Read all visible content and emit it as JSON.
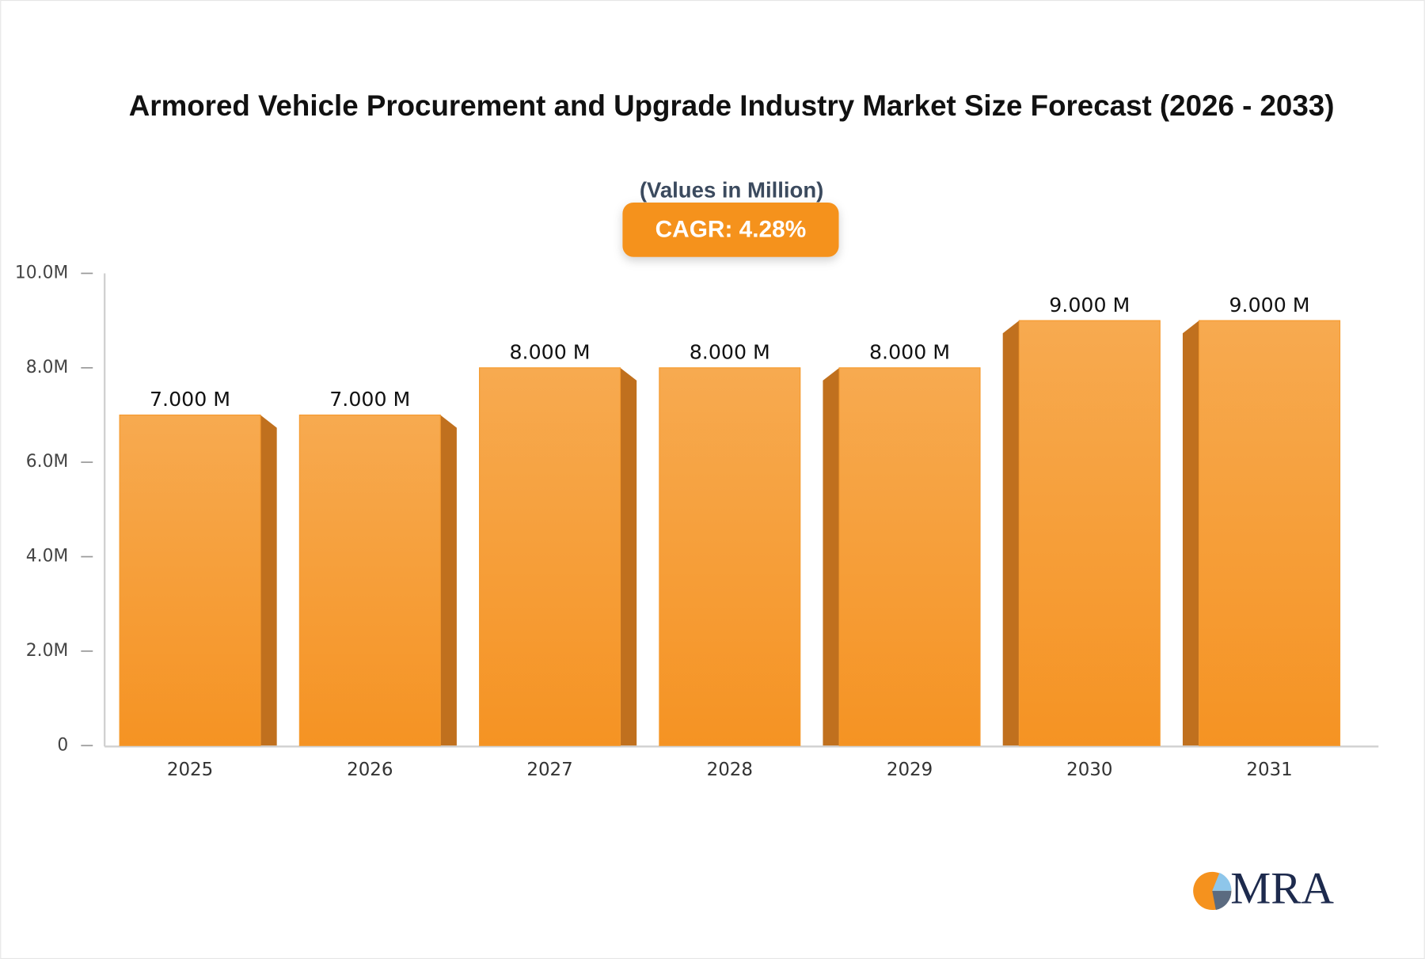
{
  "chart_data": {
    "type": "bar",
    "title": "Armored Vehicle Procurement and Upgrade Industry Market Size Forecast (2026 - 2033)",
    "subtitle": "(Values in Million)",
    "badge": "CAGR: 4.28%",
    "categories": [
      "2025",
      "2026",
      "2027",
      "2028",
      "2029",
      "2030",
      "2031"
    ],
    "values": [
      7,
      7,
      8,
      8,
      8,
      9,
      9
    ],
    "value_labels": [
      "7.000 M",
      "7.000 M",
      "8.000 M",
      "8.000 M",
      "8.000 M",
      "9.000 M",
      "9.000 M"
    ],
    "color": "#f59a2e",
    "ylim": [
      0,
      10
    ],
    "yticks": [
      0,
      {
        "value": 2,
        "label": "2.0M"
      },
      {
        "value": 4,
        "label": "4.0M"
      },
      {
        "value": 6,
        "label": "6.0M"
      },
      {
        "value": 8,
        "label": "8.0M"
      },
      {
        "value": 10,
        "label": "10.0M"
      }
    ],
    "grid": false
  },
  "logo": "MRA"
}
